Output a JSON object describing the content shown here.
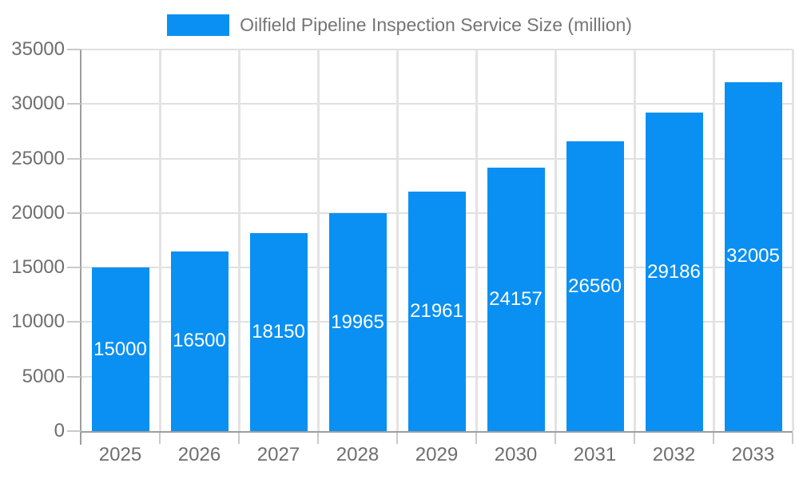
{
  "legend": {
    "label": "Oilfield Pipeline Inspection Service Size (million)"
  },
  "colors": {
    "bar": "#0A90F2",
    "grid_horizontal": "#E0E0E0",
    "grid_vertical": "#E3E3E3",
    "axis_line": "#9E9E9E",
    "tick_mark": "#C9C9C9",
    "axis_text": "#6E6E6E",
    "legend_text": "#757575",
    "bar_label_text": "#FFFFFF"
  },
  "chart_data": {
    "type": "bar",
    "title": "Oilfield Pipeline Inspection Service Size (million)",
    "categories": [
      "2025",
      "2026",
      "2027",
      "2028",
      "2029",
      "2030",
      "2031",
      "2032",
      "2033"
    ],
    "series": [
      {
        "name": "Oilfield Pipeline Inspection Service Size (million)",
        "values": [
          15000,
          16500,
          18150,
          19965,
          21961,
          24157,
          26560,
          29186,
          32005
        ]
      }
    ],
    "xlabel": "",
    "ylabel": "",
    "ylim": [
      0,
      35000
    ],
    "y_ticks": [
      0,
      5000,
      10000,
      15000,
      20000,
      25000,
      30000,
      35000
    ],
    "grid": true,
    "legend_position": "top",
    "bar_label_position": "inside-center"
  }
}
